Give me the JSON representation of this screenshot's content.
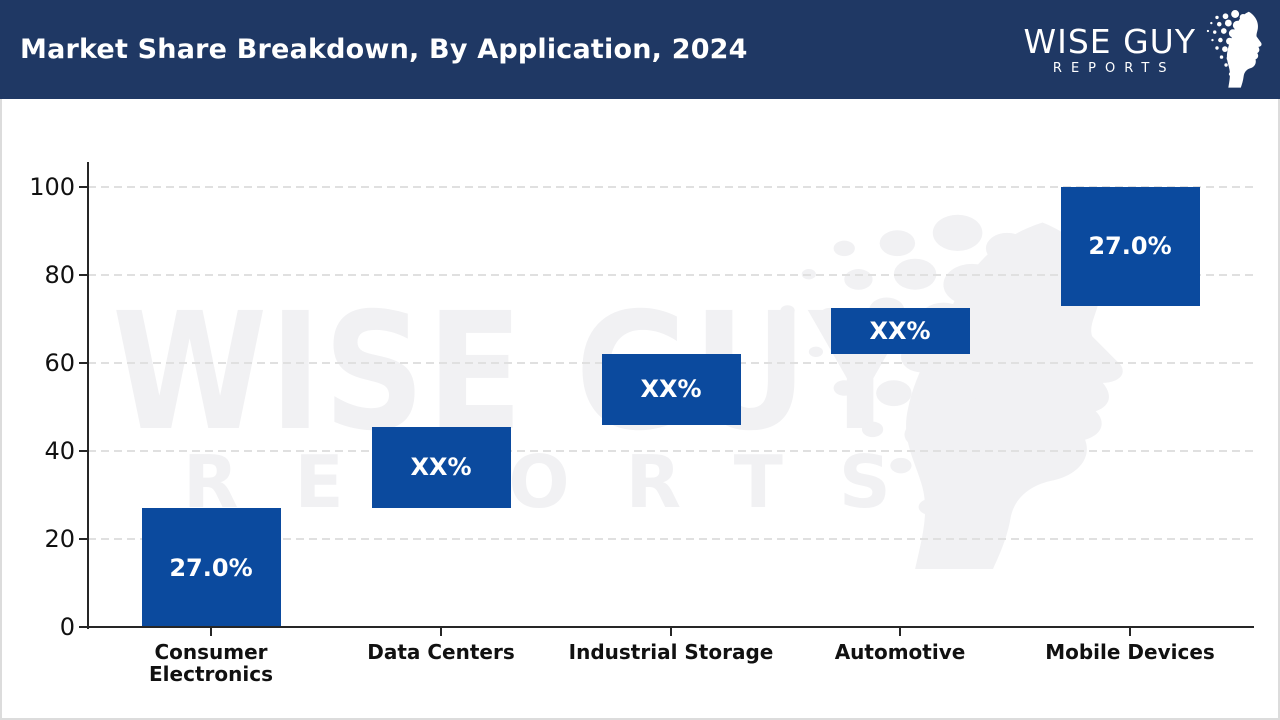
{
  "header": {
    "title": "Market Share Breakdown, By Application, 2024"
  },
  "logo": {
    "name": "WISE GUY",
    "subtitle": "REPORTS"
  },
  "watermark": {
    "name": "WISE GUY",
    "subtitle": "REPORTS"
  },
  "chart_data": {
    "type": "bar",
    "variant": "waterfall",
    "title": "Market Share Breakdown, By Application, 2024",
    "xlabel": "",
    "ylabel": "",
    "categories": [
      "Consumer\nElectronics",
      "Data Centers",
      "Industrial Storage",
      "Automotive",
      "Mobile Devices"
    ],
    "series": [
      {
        "name": "Market Share (%)",
        "segments": [
          {
            "category": "Consumer Electronics",
            "start": 0,
            "end": 27,
            "label": "27.0%"
          },
          {
            "category": "Data Centers",
            "start": 27,
            "end": 45.5,
            "label": "XX%"
          },
          {
            "category": "Industrial Storage",
            "start": 46,
            "end": 62,
            "label": "XX%"
          },
          {
            "category": "Automotive",
            "start": 62,
            "end": 72.5,
            "label": "XX%"
          },
          {
            "category": "Mobile Devices",
            "start": 73,
            "end": 100,
            "label": "27.0%"
          }
        ]
      }
    ],
    "yticks": [
      0,
      20,
      40,
      60,
      80,
      100
    ],
    "ylim": [
      0,
      106
    ],
    "grid": "horizontal-dashed",
    "legend": "none",
    "colors": {
      "bar": "#0b4a9e",
      "bar_label": "#ffffff",
      "grid": "#e0e0e0",
      "axis": "#262626",
      "tick_label": "#111111",
      "header_bg": "#1f3864",
      "header_text": "#ffffff",
      "watermark": "#f1f1f3"
    }
  }
}
